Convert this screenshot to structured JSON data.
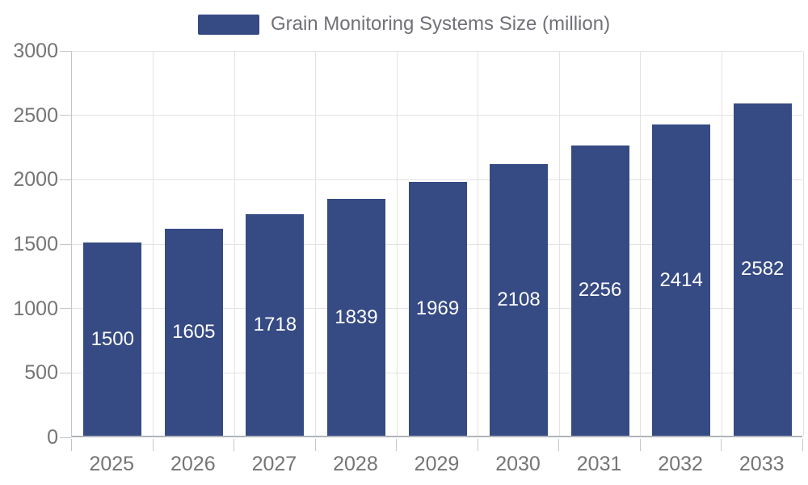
{
  "legend": {
    "label": "Grain Monitoring Systems Size (million)"
  },
  "chart_data": {
    "type": "bar",
    "title": "Grain Monitoring Systems Size (million)",
    "categories": [
      "2025",
      "2026",
      "2027",
      "2028",
      "2029",
      "2030",
      "2031",
      "2032",
      "2033"
    ],
    "values": [
      1500,
      1605,
      1718,
      1839,
      1969,
      2108,
      2256,
      2414,
      2582
    ],
    "series": [
      {
        "name": "Grain Monitoring Systems Size (million)",
        "values": [
          1500,
          1605,
          1718,
          1839,
          1969,
          2108,
          2256,
          2414,
          2582
        ]
      }
    ],
    "xlabel": "",
    "ylabel": "",
    "ylim": [
      0,
      3000
    ],
    "yticks": [
      0,
      500,
      1000,
      1500,
      2000,
      2500,
      3000
    ],
    "grid": true,
    "legend_position": "top-center",
    "value_labels": "inside-center",
    "colors": {
      "bar": "#364a84",
      "bar_value_label": "#ffffff",
      "axis_text": "#757575",
      "legend_text": "#707079",
      "gridline": "#e3e3e3",
      "axis_line": "#c2c6ce"
    }
  }
}
